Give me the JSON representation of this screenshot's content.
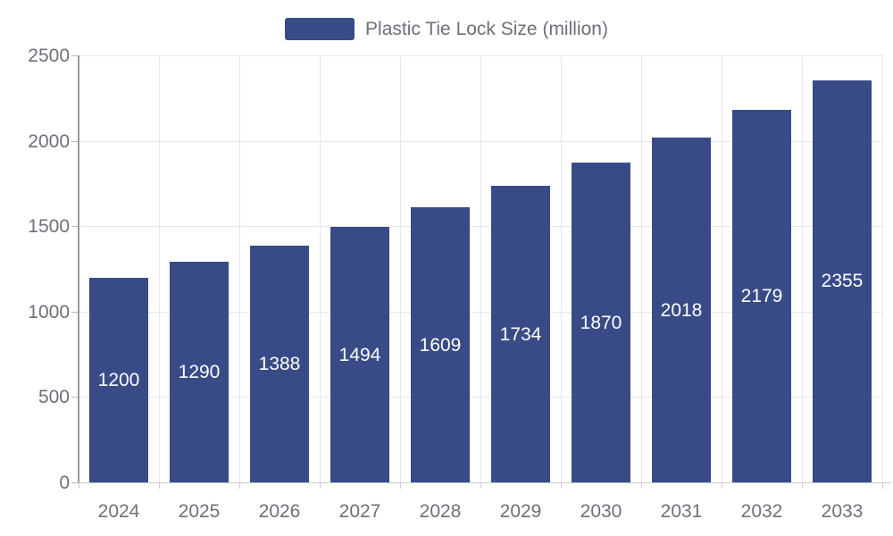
{
  "legend": {
    "label": "Plastic Tie Lock Size (million)"
  },
  "chart_data": {
    "type": "bar",
    "title": "Plastic Tie Lock Size (million)",
    "categories": [
      "2024",
      "2025",
      "2026",
      "2027",
      "2028",
      "2029",
      "2030",
      "2031",
      "2032",
      "2033"
    ],
    "values": [
      1200,
      1290,
      1388,
      1494,
      1609,
      1734,
      1870,
      2018,
      2179,
      2355
    ],
    "xlabel": "",
    "ylabel": "",
    "ylim": [
      0,
      2500
    ],
    "yticks": [
      0,
      500,
      1000,
      1500,
      2000,
      2500
    ],
    "grid": true,
    "legend_position": "top-center",
    "value_labels": "inside-center",
    "colors": {
      "bar": "#394B87",
      "bar_label": "#FFFFFF",
      "axis_text": "#6E7079",
      "grid_line": "#E4E7ED",
      "y_axis_line": "#999999",
      "x_axis_line": "#CCCCCC"
    }
  }
}
